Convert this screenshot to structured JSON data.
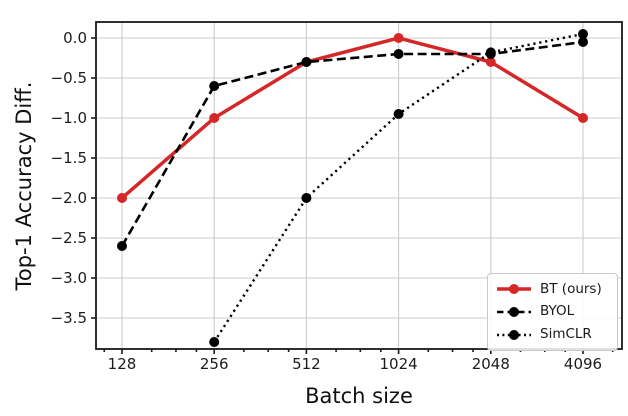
{
  "chart_data": {
    "type": "line",
    "title": "",
    "xlabel": "Batch size",
    "ylabel": "Top-1 Accuracy Diff.",
    "x_scale": "log2",
    "x_ticks": [
      128,
      256,
      512,
      1024,
      2048,
      4096
    ],
    "x_tick_labels": [
      "128",
      "256",
      "512",
      "1024",
      "2048",
      "4096"
    ],
    "y_ticks": [
      0.0,
      -0.5,
      -1.0,
      -1.5,
      -2.0,
      -2.5,
      -3.0,
      -3.5
    ],
    "ylim": [
      -3.9,
      0.2
    ],
    "grid": true,
    "legend_position": "lower right",
    "series": [
      {
        "name": "BT (ours)",
        "color": "#d62728",
        "style": "solid",
        "marker": "circle",
        "x": [
          128,
          256,
          512,
          1024,
          2048,
          4096
        ],
        "values": [
          -2.0,
          -1.0,
          -0.3,
          0.0,
          -0.3,
          -1.0
        ]
      },
      {
        "name": "BYOL",
        "color": "#000000",
        "style": "dashed",
        "marker": "circle",
        "x": [
          128,
          256,
          512,
          1024,
          2048,
          4096
        ],
        "values": [
          -2.6,
          -0.6,
          -0.3,
          -0.2,
          -0.2,
          -0.05
        ]
      },
      {
        "name": "SimCLR",
        "color": "#000000",
        "style": "dotted",
        "marker": "circle",
        "x": [
          256,
          512,
          1024,
          2048,
          4096
        ],
        "values": [
          -3.8,
          -2.0,
          -0.95,
          -0.18,
          0.05
        ]
      }
    ],
    "colors": {
      "grid": "#cccccc",
      "axis": "#1a1a1a",
      "tick_text": "#1c1c1c"
    }
  }
}
